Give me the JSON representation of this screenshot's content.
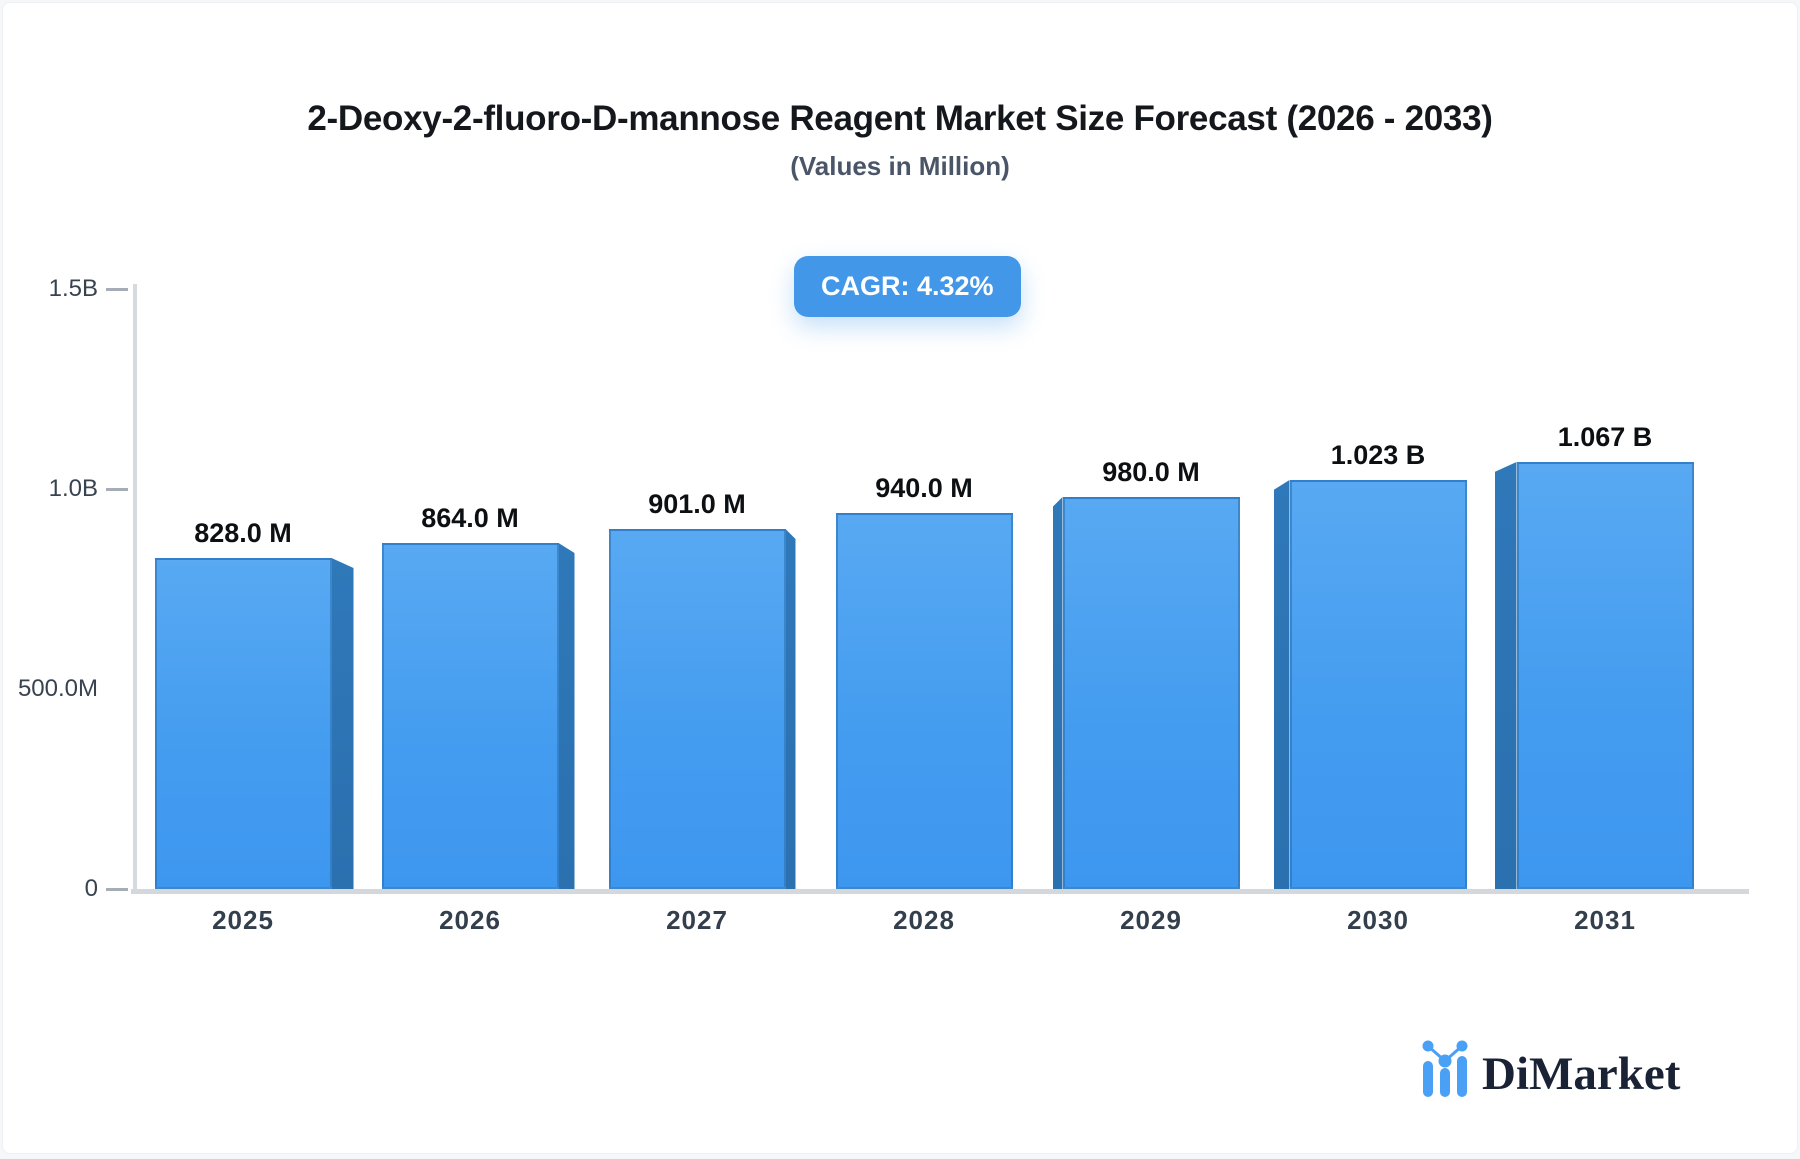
{
  "title": "2-Deoxy-2-fluoro-D-mannose Reagent Market Size Forecast (2026 - 2033)",
  "subtitle": "(Values in Million)",
  "cagr_badge": "CAGR: 4.32%",
  "chart_data": {
    "type": "bar",
    "categories": [
      "2025",
      "2026",
      "2027",
      "2028",
      "2029",
      "2030",
      "2031"
    ],
    "values": [
      828,
      864,
      901,
      940,
      980,
      1023,
      1067
    ],
    "unit": "million USD",
    "bar_labels": [
      "828.0 M",
      "864.0 M",
      "901.0 M",
      "940.0 M",
      "980.0 M",
      "1.023 B",
      "1.067 B"
    ],
    "title": "2-Deoxy-2-fluoro-D-mannose Reagent Market Size Forecast (2026 - 2033)",
    "xlabel": "",
    "ylabel": "",
    "ylim": [
      0,
      1500
    ],
    "grid": false,
    "legend": "none",
    "y_ticks": [
      {
        "label": "1.5B",
        "value": 1500,
        "dash": true
      },
      {
        "label": "1.0B",
        "value": 1000,
        "dash": true
      },
      {
        "label": "500.0M",
        "value": 500,
        "dash": false
      },
      {
        "label": "0",
        "value": 0,
        "dash": true
      }
    ],
    "bar_color": "#459df0",
    "bar_side_color": "#2d74b4"
  },
  "badge_color": "#4297e9",
  "logo": {
    "text": "DiMarket",
    "icon": "bar-chart-logo-icon",
    "icon_color": "#4aa0f5",
    "text_color": "#1a2235"
  }
}
